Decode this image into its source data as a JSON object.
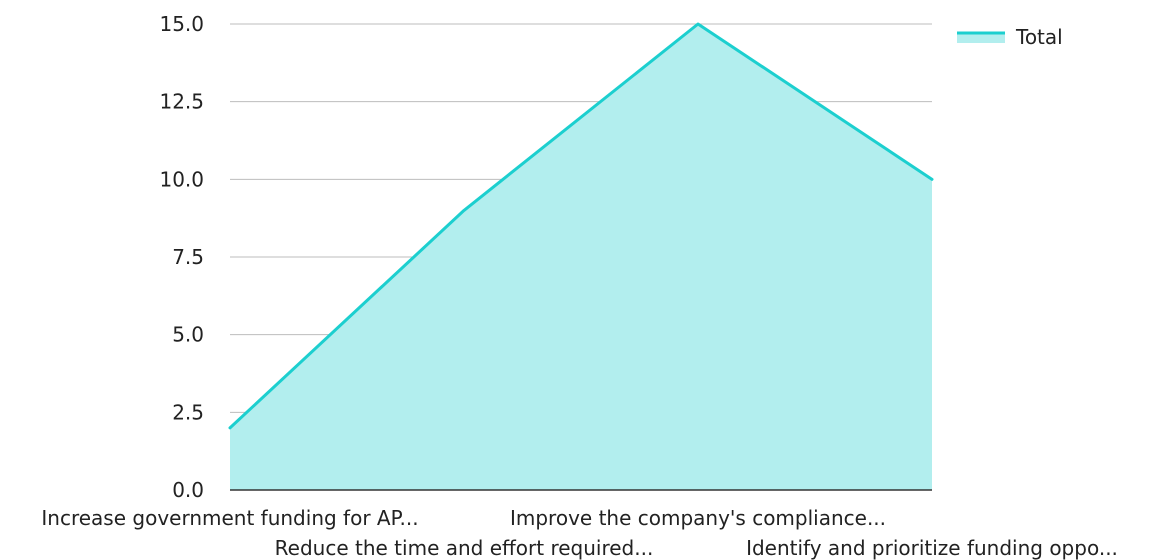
{
  "chart_data": {
    "type": "area",
    "categories": [
      "Increase government funding for AP...",
      "Reduce the time and effort required...",
      "Improve the company's compliance...",
      "Identify and prioritize funding oppo..."
    ],
    "series": [
      {
        "name": "Total",
        "values": [
          2,
          9,
          15,
          10
        ]
      }
    ],
    "ylim": [
      0,
      15
    ],
    "yticks": [
      "0.0",
      "2.5",
      "5.0",
      "7.5",
      "10.0",
      "12.5",
      "15.0"
    ],
    "grid": true,
    "legend": "top-right",
    "colors": {
      "line": "#1ccfcf",
      "fill": "#b2eeee"
    }
  }
}
